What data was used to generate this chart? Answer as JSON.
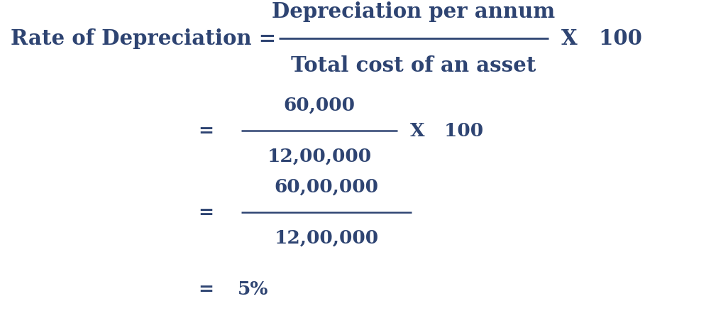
{
  "background_color": "#ffffff",
  "text_color": "#2e4472",
  "font_family": "DejaVu Serif",
  "fs_large": 21,
  "fs_body": 19,
  "line1_label": "Rate of Depreciation =",
  "line1_numerator": "Depreciation per annum",
  "line1_denominator": "Total cost of an asset",
  "line1_x100": "X   100",
  "line2_equals": "=",
  "line2_numerator": "60,000",
  "line2_denominator": "12,00,000",
  "line2_x100": "X   100",
  "line3_equals": "=",
  "line3_numerator": "60,00,000",
  "line3_denominator": "12,00,000",
  "line4_equals": "=",
  "line4_result": "5%"
}
